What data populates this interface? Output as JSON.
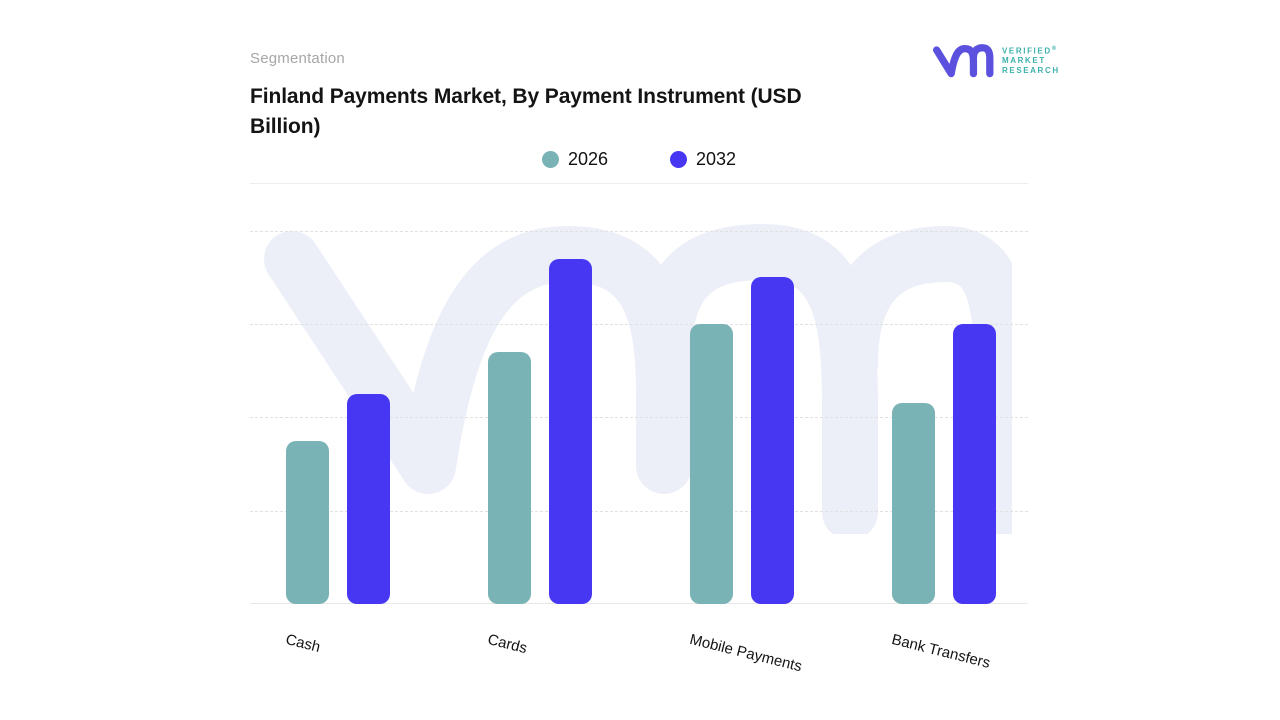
{
  "header": {
    "eyebrow": "Segmentation",
    "title": "Finland Payments Market, By Payment Instrument (USD Billion)"
  },
  "logo": {
    "monogram": "vmr-monogram",
    "monogram_color": "#5B51DE",
    "text_color": "#3DB1AC",
    "lines": [
      "VERIFIED",
      "MARKET",
      "RESEARCH"
    ],
    "registered_mark": "®"
  },
  "watermark": {
    "name": "vmr-monogram-watermark",
    "color": "#EDEFF8"
  },
  "chart_data": {
    "type": "bar",
    "title": "Finland Payments Market, By Payment Instrument (USD Billion)",
    "categories": [
      "Cash",
      "Cards",
      "Mobile Payments",
      "Bank Transfers"
    ],
    "series": [
      {
        "name": "2026",
        "color": "#7AB3B5",
        "values": [
          1.75,
          2.7,
          3.0,
          2.15
        ]
      },
      {
        "name": "2032",
        "color": "#4837F2",
        "values": [
          2.25,
          3.7,
          3.5,
          3.0
        ]
      }
    ],
    "xlabel": "",
    "ylabel": "",
    "ylim": [
      0,
      4.5
    ],
    "y_axis_labels_visible": false,
    "gridline_interval": 1,
    "grid": "dashed-horizontal",
    "legend_position": "top-center",
    "colors": {
      "gridline": "#E1E1E1",
      "baseline": "#E7E7E7",
      "label_text": "#141414"
    }
  }
}
